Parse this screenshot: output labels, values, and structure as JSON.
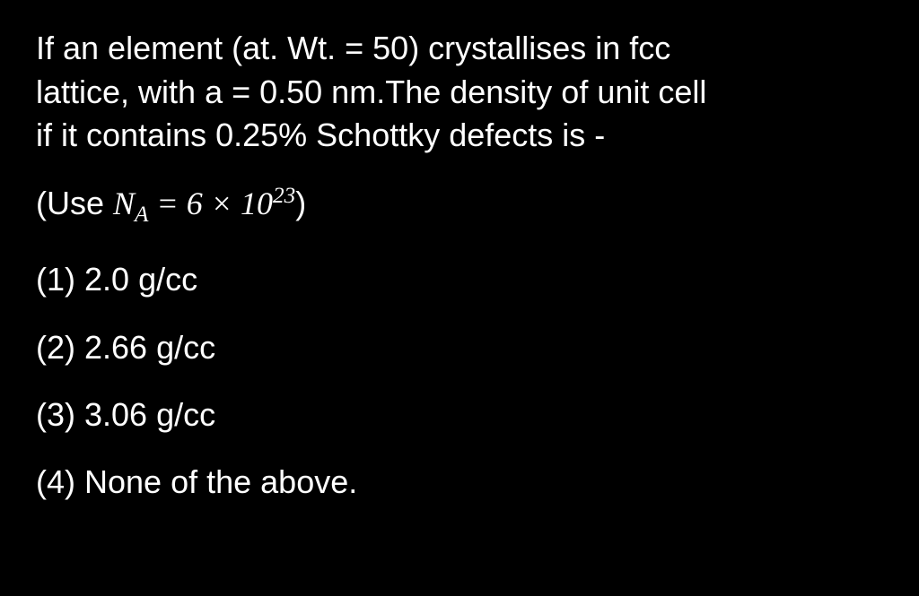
{
  "question": {
    "line1": "If an element (at. Wt. = 50) crystallises in fcc",
    "line2": "lattice, with a = 0.50 nm.The density of unit cell",
    "line3": "if it contains 0.25% Schottky defects is -"
  },
  "use": {
    "prefix": "(Use ",
    "var": "N",
    "subscript": "A",
    "equals": " = 6 × 10",
    "exponent": "23",
    "suffix": ")"
  },
  "options": [
    {
      "num": "(1)",
      "text": "2.0 g/cc"
    },
    {
      "num": "(2)",
      "text": "2.66 g/cc"
    },
    {
      "num": "(3)",
      "text": "3.06 g/cc"
    },
    {
      "num": "(4)",
      "text": "None of the above."
    }
  ],
  "colors": {
    "background": "#000000",
    "text": "#ffffff"
  },
  "fontsize": {
    "question": 36,
    "option": 36
  }
}
